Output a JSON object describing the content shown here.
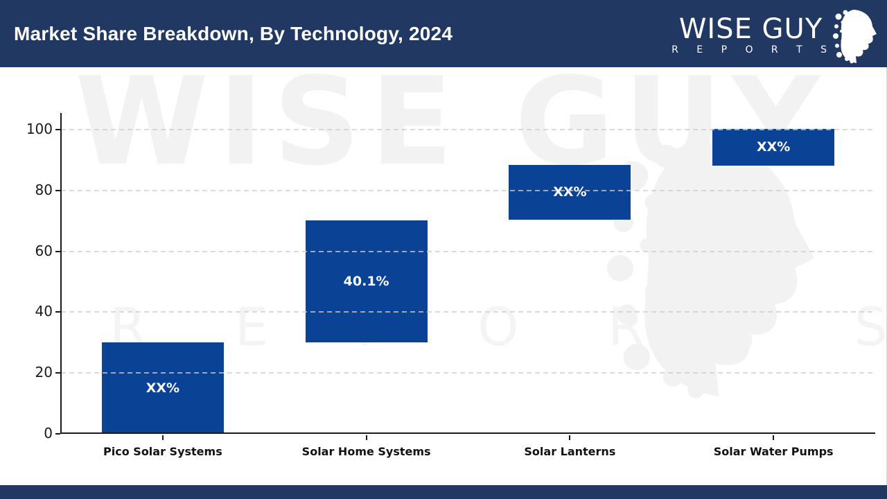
{
  "header": {
    "title": "Market Share Breakdown, By Technology, 2024",
    "bg_color": "#203862",
    "logo": {
      "line1": "WISE GUY",
      "line2": "R E P O R T S"
    }
  },
  "watermark": {
    "line1": "WISE GUY",
    "line2": "R E P O R T S"
  },
  "footer": {
    "bg_color": "#203862"
  },
  "chart_data": {
    "type": "bar",
    "variant": "floating-segment-waterfall",
    "title": "Market Share Breakdown, By Technology, 2024",
    "categories": [
      "Pico Solar Systems",
      "Solar Home Systems",
      "Solar Lanterns",
      "Solar Water Pumps"
    ],
    "segments": [
      {
        "category": "Pico Solar Systems",
        "start": 0,
        "end": 30,
        "label": "XX%"
      },
      {
        "category": "Solar Home Systems",
        "start": 30,
        "end": 70.1,
        "label": "40.1%",
        "value": 40.1
      },
      {
        "category": "Solar Lanterns",
        "start": 70.4,
        "end": 88.4,
        "label": "XX%"
      },
      {
        "category": "Solar Water Pumps",
        "start": 88.2,
        "end": 100.2,
        "label": "XX%"
      }
    ],
    "yticks": [
      0,
      20,
      40,
      60,
      80,
      100
    ],
    "ylim": [
      0,
      105
    ],
    "xlabel": "",
    "ylabel": "",
    "bar_color": "#0a4296",
    "bar_label_color": "#ffffff",
    "grid": {
      "axis": "y",
      "style": "dashed",
      "color": "#d3d3d3",
      "on": true
    },
    "legend": null,
    "background": "#ffffff"
  }
}
